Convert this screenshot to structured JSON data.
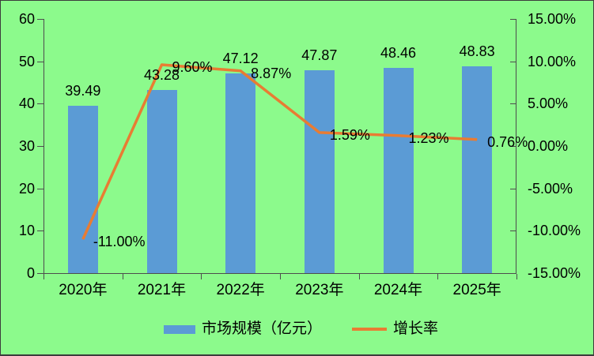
{
  "chart_data": {
    "type": "bar",
    "subtype": "combo-bar-line-dual-axis",
    "title": "",
    "categories": [
      "2020年",
      "2021年",
      "2022年",
      "2023年",
      "2024年",
      "2025年"
    ],
    "series": [
      {
        "name": "市场规模（亿元）",
        "type": "bar",
        "axis": "left",
        "values": [
          39.49,
          43.28,
          47.12,
          47.87,
          48.46,
          48.83
        ],
        "data_labels": [
          "39.49",
          "43.28",
          "47.12",
          "47.87",
          "48.46",
          "48.83"
        ]
      },
      {
        "name": "增长率",
        "type": "line",
        "axis": "right",
        "values": [
          -11.0,
          9.6,
          8.87,
          1.59,
          1.23,
          0.76
        ],
        "data_labels": [
          "-11.00%",
          "9.60%",
          "8.87%",
          "1.59%",
          "1.23%",
          "0.76%"
        ]
      }
    ],
    "left_axis": {
      "min": 0,
      "max": 60,
      "tick_values": [
        60,
        50,
        40,
        30,
        20,
        10,
        0
      ],
      "tick_labels": [
        "60",
        "50",
        "40",
        "30",
        "20",
        "10",
        "0"
      ]
    },
    "right_axis": {
      "min": -15,
      "max": 15,
      "tick_values": [
        15,
        10,
        5,
        0,
        -5,
        -10,
        -15
      ],
      "tick_labels": [
        "15.00%",
        "10.00%",
        "5.00%",
        "0.00%",
        "-5.00%",
        "-10.00%",
        "-15.00%"
      ]
    },
    "legend": {
      "position": "bottom"
    },
    "grid": "off",
    "colors": {
      "background": "#8CFA8C",
      "bar": "#5B9BD5",
      "line": "#E87C33",
      "text": "#000000",
      "axis": "#4D4D4D"
    }
  }
}
